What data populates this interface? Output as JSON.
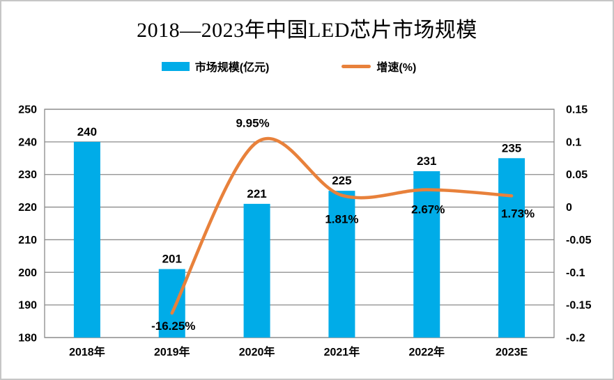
{
  "title": "2018—2023年中国LED芯片市场规模",
  "legend": {
    "bar_label": "市场规模(亿元)",
    "line_label": "增速(%)"
  },
  "colors": {
    "bar": "#00ACE8",
    "line": "#E8813B",
    "grid": "#8a8a8a",
    "text": "#000000"
  },
  "chart_data": {
    "type": "bar+line combo",
    "title": "2018—2023年中国LED芯片市场规模",
    "categories": [
      "2018年",
      "2019年",
      "2020年",
      "2021年",
      "2022年",
      "2023E"
    ],
    "series": [
      {
        "name": "市场规模(亿元)",
        "type": "bar",
        "axis": "left",
        "color": "#00ACE8",
        "values": [
          240,
          201,
          221,
          225,
          231,
          235
        ],
        "labels": [
          "240",
          "201",
          "221",
          "225",
          "231",
          "235"
        ]
      },
      {
        "name": "增速(%)",
        "type": "line",
        "axis": "right",
        "color": "#E8813B",
        "values": [
          null,
          -0.1625,
          0.0995,
          0.0181,
          0.0267,
          0.0173
        ],
        "labels": [
          "",
          "-16.25%",
          "9.95%",
          "1.81%",
          "2.67%",
          "1.73%"
        ]
      }
    ],
    "left_axis": {
      "min": 180,
      "max": 250,
      "step": 10,
      "ticks": [
        "250",
        "240",
        "230",
        "220",
        "210",
        "200",
        "190",
        "180"
      ]
    },
    "right_axis": {
      "min": -0.2,
      "max": 0.15,
      "step": 0.05,
      "ticks": [
        "0.15",
        "0.1",
        "0.05",
        "0",
        "-0.05",
        "-0.1",
        "-0.15",
        "-0.2"
      ]
    },
    "grid": "horizontal",
    "legend_position": "top"
  }
}
